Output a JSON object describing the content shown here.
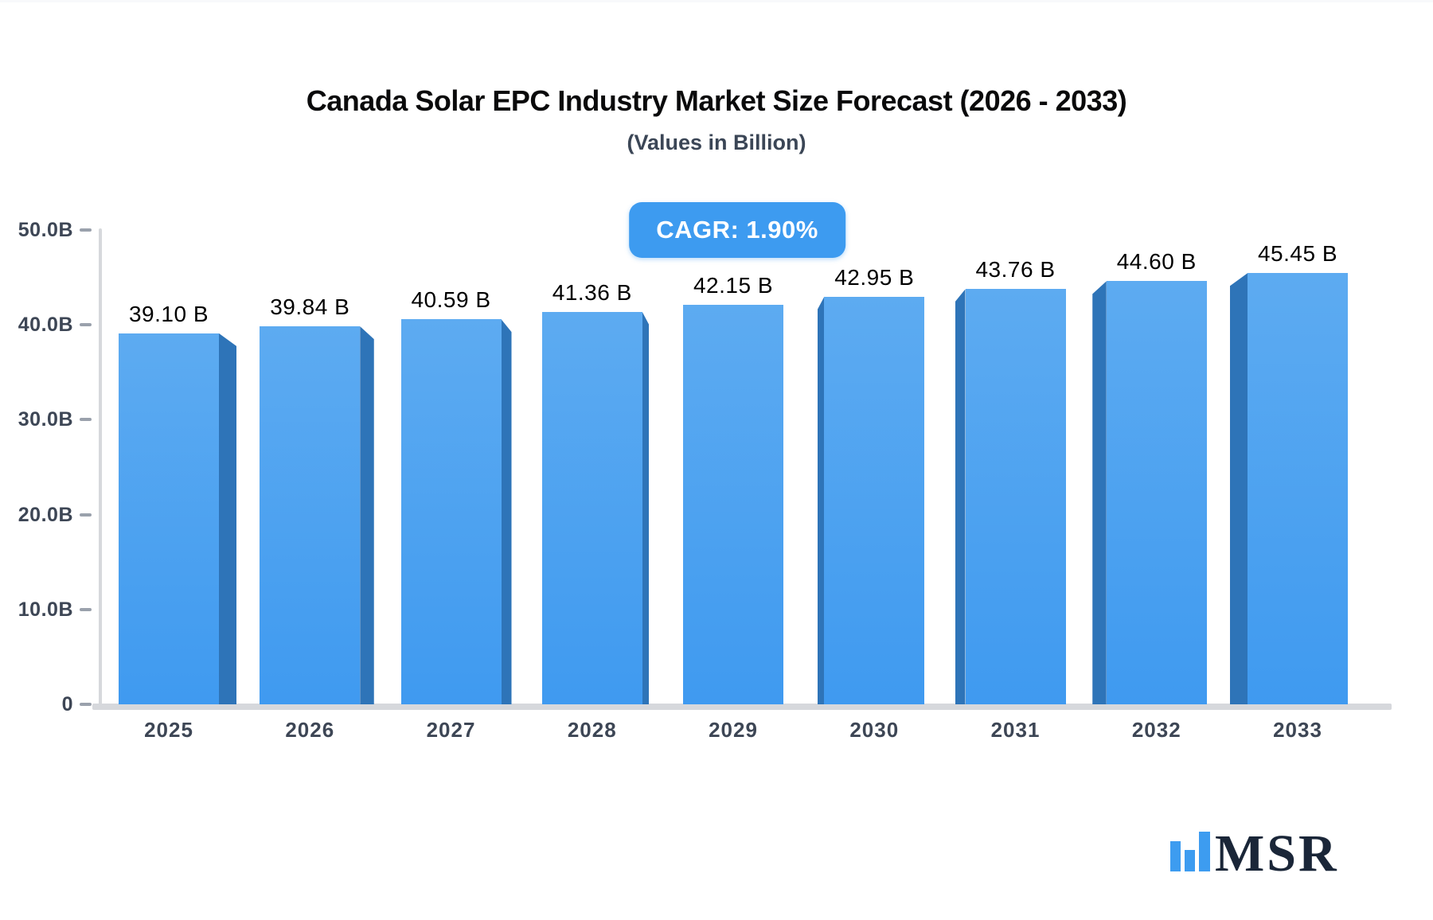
{
  "title": "Canada Solar EPC Industry Market Size Forecast (2026 - 2033)",
  "subtitle": "(Values in Billion)",
  "badge": {
    "text": "CAGR: 1.90%"
  },
  "logo": {
    "text": "MSR",
    "icon": "bar-chart-icon"
  },
  "colors": {
    "bar_face_top": "#5dabf1",
    "bar_face_bottom": "#3f9af0",
    "bar_side": "#2e74b8",
    "badge_bg": "#3d9bf0",
    "axis_line": "#d6d8dc",
    "axis_text": "#3d4655",
    "title_text": "#0a0a0b",
    "subtitle_text": "#3b4656",
    "value_text": "#000000",
    "logo_bar": "#3d9cf0",
    "logo_text": "#1a2638"
  },
  "chart_data": {
    "type": "bar",
    "title": "Canada Solar EPC Industry Market Size Forecast (2026 - 2033)",
    "subtitle": "(Values in Billion)",
    "annotation": "CAGR: 1.90%",
    "categories": [
      "2025",
      "2026",
      "2027",
      "2028",
      "2029",
      "2030",
      "2031",
      "2032",
      "2033"
    ],
    "values": [
      39.1,
      39.84,
      40.59,
      41.36,
      42.15,
      42.95,
      43.76,
      44.6,
      45.45
    ],
    "value_labels": [
      "39.10 B",
      "39.84 B",
      "40.59 B",
      "41.36 B",
      "42.15 B",
      "42.95 B",
      "43.76 B",
      "44.60 B",
      "45.45 B"
    ],
    "unit": "Billion",
    "xlabel": "",
    "ylabel": "",
    "ylim": [
      0,
      50
    ],
    "y_tick_labels": [
      "50.0B",
      "40.0B",
      "30.0B",
      "20.0B",
      "10.0B",
      "0"
    ],
    "y_tick_values": [
      50,
      40,
      30,
      20,
      10,
      0
    ],
    "grid": false,
    "legend": false,
    "style": "pseudo-3d-bars"
  }
}
